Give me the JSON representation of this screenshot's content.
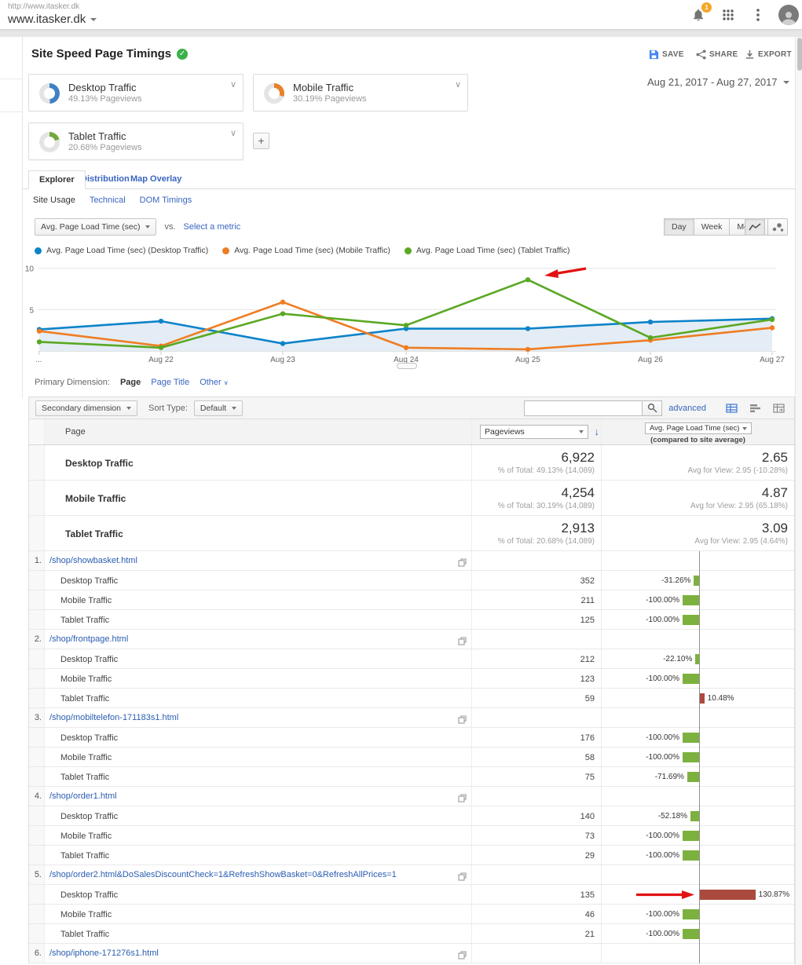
{
  "topbar": {
    "url": "http://www.itasker.dk",
    "account": "www.itasker.dk",
    "notification_count": "1"
  },
  "report": {
    "title": "Site Speed Page Timings",
    "save": "SAVE",
    "share": "SHARE",
    "export": "EXPORT",
    "date_range": "Aug 21, 2017 - Aug 27, 2017"
  },
  "segments": [
    {
      "name": "Desktop Traffic",
      "detail": "49.13% Pageviews",
      "share_pct": 49.13,
      "color": "#4181c3"
    },
    {
      "name": "Mobile Traffic",
      "detail": "30.19% Pageviews",
      "share_pct": 30.19,
      "color": "#e8812c"
    },
    {
      "name": "Tablet Traffic",
      "detail": "20.68% Pageviews",
      "share_pct": 20.68,
      "color": "#73a93c"
    }
  ],
  "tabs": {
    "explorer": "Explorer",
    "distribution": "Distribution",
    "map_overlay": "Map Overlay"
  },
  "subtabs": {
    "site_usage": "Site Usage",
    "technical": "Technical",
    "dom_timings": "DOM Timings"
  },
  "metric_bar": {
    "metric": "Avg. Page Load Time (sec)",
    "vs": "vs.",
    "select_metric": "Select a metric",
    "day": "Day",
    "week": "Week",
    "month": "Month"
  },
  "chart_data": {
    "type": "line",
    "x": [
      "Aug 21",
      "Aug 22",
      "Aug 23",
      "Aug 24",
      "Aug 25",
      "Aug 26",
      "Aug 27"
    ],
    "x_tick_labels": [
      "...",
      "Aug 22",
      "Aug 23",
      "Aug 24",
      "Aug 25",
      "Aug 26",
      "Aug 27"
    ],
    "ylim": [
      0,
      10
    ],
    "yticks": [
      5,
      10
    ],
    "legend_position": "top",
    "series": [
      {
        "name": "Avg. Page Load Time (sec) (Desktop Traffic)",
        "color": "#0d83c9",
        "area": true,
        "values": [
          2.6,
          3.6,
          0.9,
          2.7,
          2.7,
          3.5,
          3.9
        ]
      },
      {
        "name": "Avg. Page Load Time (sec) (Mobile Traffic)",
        "color": "#ef7d23",
        "values": [
          2.4,
          0.6,
          5.9,
          0.4,
          0.2,
          1.3,
          2.8
        ]
      },
      {
        "name": "Avg. Page Load Time (sec) (Tablet Traffic)",
        "color": "#5aa823",
        "values": [
          1.1,
          0.4,
          4.5,
          3.1,
          8.6,
          1.6,
          3.8
        ]
      }
    ],
    "annotations": [
      {
        "type": "arrow",
        "color": "#e31212",
        "points_at": "Tablet Traffic peak on Aug 25"
      }
    ]
  },
  "dimension_bar": {
    "label": "Primary Dimension:",
    "page": "Page",
    "page_title": "Page Title",
    "other": "Other"
  },
  "toolbar": {
    "secondary_dimension": "Secondary dimension",
    "sort_type_label": "Sort Type:",
    "sort_type": "Default",
    "advanced": "advanced",
    "search_value": ""
  },
  "table": {
    "header": {
      "page": "Page",
      "pageviews": "Pageviews",
      "metric": "Avg. Page Load Time (sec)",
      "metric_sub": "(compared to site average)"
    },
    "bar_colors": {
      "negative": "#7db13f",
      "positive": "#aa4a3d"
    },
    "summary": [
      {
        "name": "Desktop Traffic",
        "pageviews": "6,922",
        "pageviews_sub": "% of Total: 49.13% (14,089)",
        "value": "2.65",
        "value_sub": "Avg for View: 2.95 (-10.28%)"
      },
      {
        "name": "Mobile Traffic",
        "pageviews": "4,254",
        "pageviews_sub": "% of Total: 30.19% (14,089)",
        "value": "4.87",
        "value_sub": "Avg for View: 2.95 (65.18%)"
      },
      {
        "name": "Tablet Traffic",
        "pageviews": "2,913",
        "pageviews_sub": "% of Total: 20.68% (14,089)",
        "value": "3.09",
        "value_sub": "Avg for View: 2.95 (4.64%)"
      }
    ],
    "rows": [
      {
        "index": "1.",
        "page": "/shop/showbasket.html",
        "segments": [
          {
            "name": "Desktop Traffic",
            "pageviews": "352",
            "pct": -31.26,
            "label": "-31.26%"
          },
          {
            "name": "Mobile Traffic",
            "pageviews": "211",
            "pct": -100.0,
            "label": "-100.00%"
          },
          {
            "name": "Tablet Traffic",
            "pageviews": "125",
            "pct": -100.0,
            "label": "-100.00%"
          }
        ]
      },
      {
        "index": "2.",
        "page": "/shop/frontpage.html",
        "segments": [
          {
            "name": "Desktop Traffic",
            "pageviews": "212",
            "pct": -22.1,
            "label": "-22.10%"
          },
          {
            "name": "Mobile Traffic",
            "pageviews": "123",
            "pct": -100.0,
            "label": "-100.00%"
          },
          {
            "name": "Tablet Traffic",
            "pageviews": "59",
            "pct": 10.48,
            "label": "10.48%"
          }
        ]
      },
      {
        "index": "3.",
        "page": "/shop/mobiltelefon-171183s1.html",
        "segments": [
          {
            "name": "Desktop Traffic",
            "pageviews": "176",
            "pct": -100.0,
            "label": "-100.00%"
          },
          {
            "name": "Mobile Traffic",
            "pageviews": "58",
            "pct": -100.0,
            "label": "-100.00%"
          },
          {
            "name": "Tablet Traffic",
            "pageviews": "75",
            "pct": -71.69,
            "label": "-71.69%"
          }
        ]
      },
      {
        "index": "4.",
        "page": "/shop/order1.html",
        "segments": [
          {
            "name": "Desktop Traffic",
            "pageviews": "140",
            "pct": -52.18,
            "label": "-52.18%"
          },
          {
            "name": "Mobile Traffic",
            "pageviews": "73",
            "pct": -100.0,
            "label": "-100.00%"
          },
          {
            "name": "Tablet Traffic",
            "pageviews": "29",
            "pct": -100.0,
            "label": "-100.00%"
          }
        ]
      },
      {
        "index": "5.",
        "page": "/shop/order2.html&DoSalesDiscountCheck=1&RefreshShowBasket=0&RefreshAllPrices=1",
        "segments": [
          {
            "name": "Desktop Traffic",
            "pageviews": "135",
            "pct": 130.87,
            "label": "130.87%",
            "arrow": true
          },
          {
            "name": "Mobile Traffic",
            "pageviews": "46",
            "pct": -100.0,
            "label": "-100.00%"
          },
          {
            "name": "Tablet Traffic",
            "pageviews": "21",
            "pct": -100.0,
            "label": "-100.00%"
          }
        ]
      },
      {
        "index": "6.",
        "page": "/shop/iphone-171276s1.html",
        "segments": []
      }
    ]
  }
}
